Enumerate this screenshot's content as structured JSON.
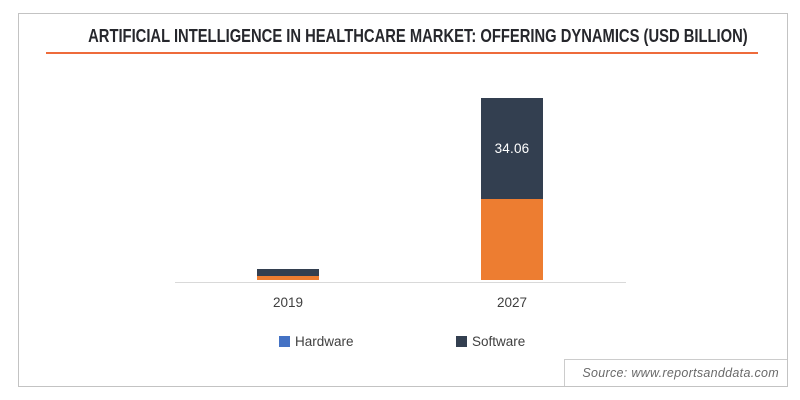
{
  "title": "ARTIFICIAL INTELLIGENCE IN HEALTHCARE MARKET: OFFERING DYNAMICS (USD BILLION)",
  "source": "Source: www.reportsanddata.com",
  "legend": [
    {
      "label": "Hardware",
      "swatch_color": "#4472C4"
    },
    {
      "label": "Software",
      "swatch_color": "#333F50"
    }
  ],
  "colors": {
    "hardware_bar": "#ED7D31",
    "software_bar": "#333F50",
    "title_underline": "#EE6B3B",
    "axis_line": "#D9D9D9",
    "card_border": "#C3C3C3",
    "bar_value_label": "#FFFFFF"
  },
  "chart_data": {
    "type": "bar",
    "stacked": true,
    "title": "ARTIFICIAL INTELLIGENCE IN HEALTHCARE MARKET: OFFERING DYNAMICS (USD BILLION)",
    "categories": [
      "2019",
      "2027"
    ],
    "series": [
      {
        "name": "Hardware",
        "color": "#ED7D31",
        "values": [
          1.2,
          27.2
        ],
        "note": "values estimated from bar heights except labeled points"
      },
      {
        "name": "Software",
        "color": "#333F50",
        "values": [
          2.5,
          34.06
        ]
      }
    ],
    "data_labels": [
      {
        "category": "2027",
        "series": "Software",
        "text": "34.06"
      }
    ],
    "xlabel": "",
    "ylabel": "",
    "units": "USD Billion",
    "ylim": [
      0,
      65
    ],
    "grid": false,
    "y_axis_shown": false,
    "legend_position": "bottom"
  }
}
